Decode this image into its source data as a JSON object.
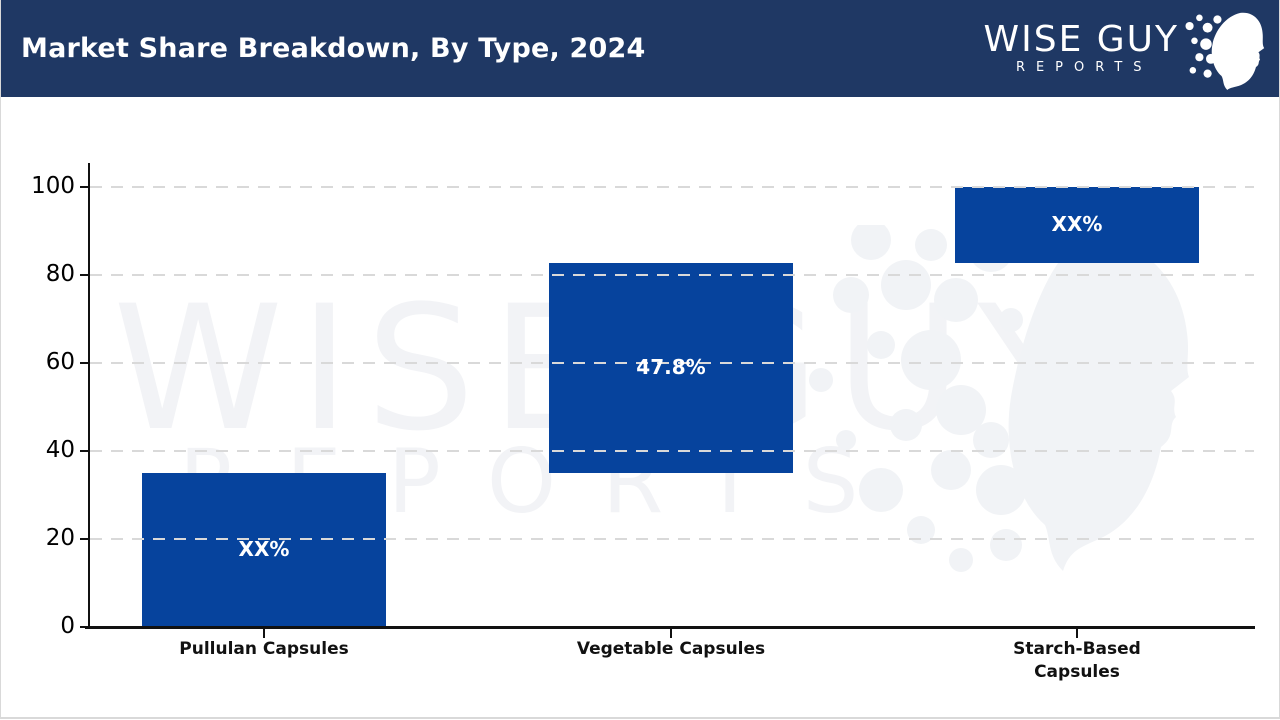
{
  "header": {
    "title": "Market Share Breakdown, By Type, 2024",
    "bg_color": "#1F3864",
    "logo": {
      "line1": "WISE GUY",
      "line2": "REPORTS"
    }
  },
  "watermark": {
    "line1": "WISE GUY",
    "line2": "REPORTS"
  },
  "chart_data": {
    "type": "bar",
    "subtype": "stacked-waterfall",
    "title": "Market Share Breakdown, By Type, 2024",
    "categories": [
      "Pullulan Capsules",
      "Vegetable Capsules",
      "Starch-Based Capsules"
    ],
    "tick_lines": [
      [
        "Pullulan Capsules"
      ],
      [
        "Vegetable Capsules"
      ],
      [
        "Starch-Based",
        "Capsules"
      ]
    ],
    "segments": [
      {
        "category": "Pullulan Capsules",
        "start": 0,
        "end": 35,
        "label": "XX%"
      },
      {
        "category": "Vegetable Capsules",
        "start": 35,
        "end": 82.8,
        "label": "47.8%"
      },
      {
        "category": "Starch-Based Capsules",
        "start": 82.8,
        "end": 100,
        "label": "XX%"
      }
    ],
    "ylim": [
      0,
      100
    ],
    "yticks": [
      0,
      20,
      40,
      60,
      80,
      100
    ],
    "ytick_labels": [
      "0",
      "20",
      "40",
      "60",
      "80",
      "100"
    ],
    "grid": "horizontal-dashed",
    "legend": "none",
    "bar_color": "#06439D",
    "bar_label_color": "#FFFFFF"
  }
}
